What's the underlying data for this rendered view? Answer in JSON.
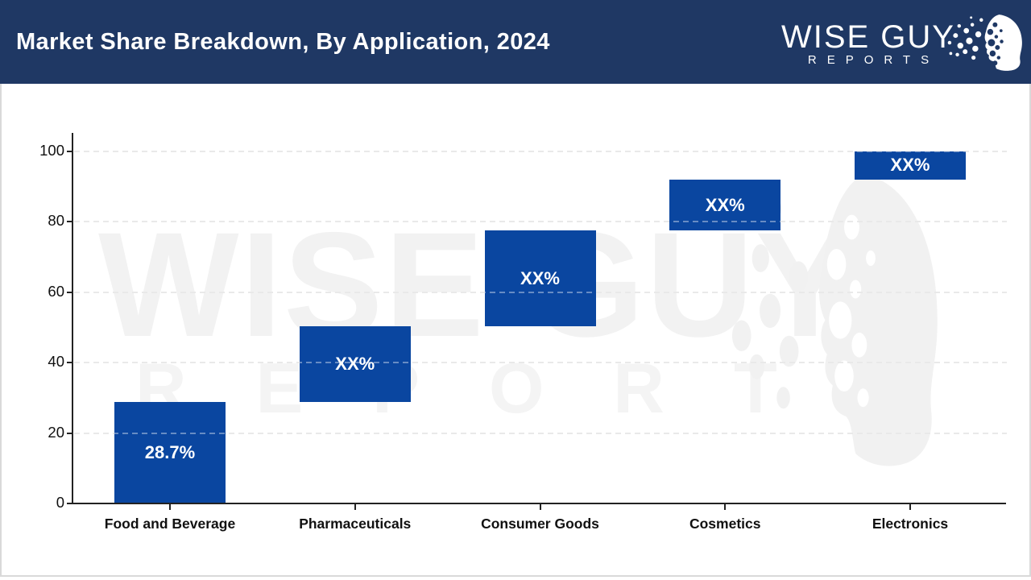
{
  "header": {
    "title": "Market Share Breakdown, By Application, 2024",
    "logo": {
      "line1": "WISE GUY",
      "line2": "REPORTS"
    }
  },
  "watermark": {
    "line1": "WISE GUY",
    "line2": "REPORTS"
  },
  "colors": {
    "header_bg": "#1f3864",
    "bar_blue": "#0a46a0",
    "axis": "#222222",
    "tick_text": "#111111",
    "bar_label_text": "#ffffff",
    "gridline": "#dcdcdc",
    "watermark_gray": "#f2f2f2",
    "frame_border": "#d9d9d9"
  },
  "chart_data": {
    "type": "bar",
    "variant": "waterfall-floating-bars",
    "title": "Market Share Breakdown, By Application, 2024",
    "categories": [
      "Food and Beverage",
      "Pharmaceuticals",
      "Consumer Goods",
      "Cosmetics",
      "Electronics"
    ],
    "segments": [
      {
        "category": "Food and Beverage",
        "start": 0,
        "end": 28.7,
        "label": "28.7%"
      },
      {
        "category": "Pharmaceuticals",
        "start": 28.7,
        "end": 50.2,
        "label": "XX%"
      },
      {
        "category": "Consumer Goods",
        "start": 50.2,
        "end": 77.4,
        "label": "XX%"
      },
      {
        "category": "Cosmetics",
        "start": 77.4,
        "end": 91.8,
        "label": "XX%"
      },
      {
        "category": "Electronics",
        "start": 91.8,
        "end": 100,
        "label": "XX%"
      }
    ],
    "yticks": [
      0,
      20,
      40,
      60,
      80,
      100
    ],
    "ylim": [
      0,
      105
    ],
    "xlabel": "",
    "ylabel": "",
    "grid": "dashed-horizontal",
    "legend": "none"
  }
}
